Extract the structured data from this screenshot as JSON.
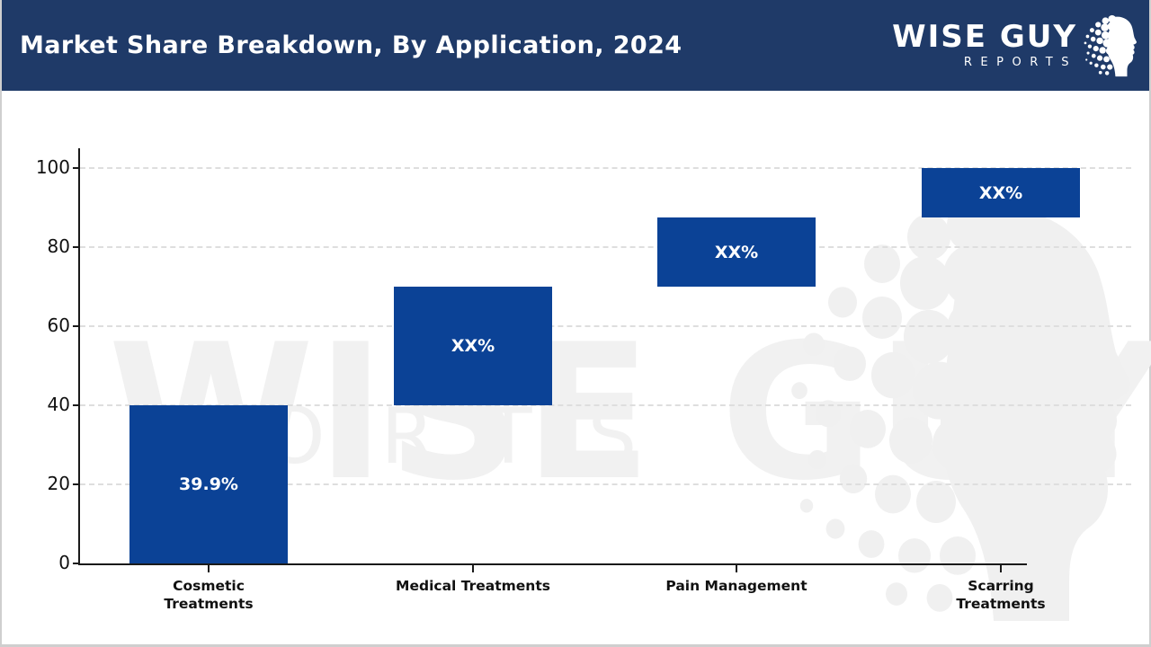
{
  "header": {
    "title": "Market Share Breakdown, By Application, 2024",
    "bg_color": "#1f3a68",
    "logo": {
      "line1": "WISE GUY",
      "line2": "REPORTS"
    }
  },
  "watermark": {
    "line1": "WISE GUY",
    "line2": "PORTS"
  },
  "chart_data": {
    "type": "bar",
    "subtype": "waterfall",
    "title": "Market Share Breakdown, By Application, 2024",
    "categories": [
      "Cosmetic Treatments",
      "Medical Treatments",
      "Pain Management",
      "Scarring Treatments"
    ],
    "category_label_lines": [
      [
        "Cosmetic",
        "Treatments"
      ],
      [
        "Medical Treatments"
      ],
      [
        "Pain Management"
      ],
      [
        "Scarring",
        "Treatments"
      ]
    ],
    "bars": [
      {
        "category": "Cosmetic Treatments",
        "label": "39.9%",
        "start": 0,
        "end": 39.9
      },
      {
        "category": "Medical Treatments",
        "label": "XX%",
        "start": 39.9,
        "end": 70
      },
      {
        "category": "Pain Management",
        "label": "XX%",
        "start": 70,
        "end": 87.5
      },
      {
        "category": "Scarring Treatments",
        "label": "XX%",
        "start": 87.5,
        "end": 100
      }
    ],
    "yticks": [
      0,
      20,
      40,
      60,
      80,
      100
    ],
    "ylim": [
      0,
      105
    ],
    "xlabel": "",
    "ylabel": "",
    "grid": "horizontal-dashed",
    "legend": "none",
    "bar_color": "#0b4296",
    "bar_label_color": "#ffffff",
    "axis_color": "#1a1a1a",
    "gridline_color": "#dedede"
  }
}
